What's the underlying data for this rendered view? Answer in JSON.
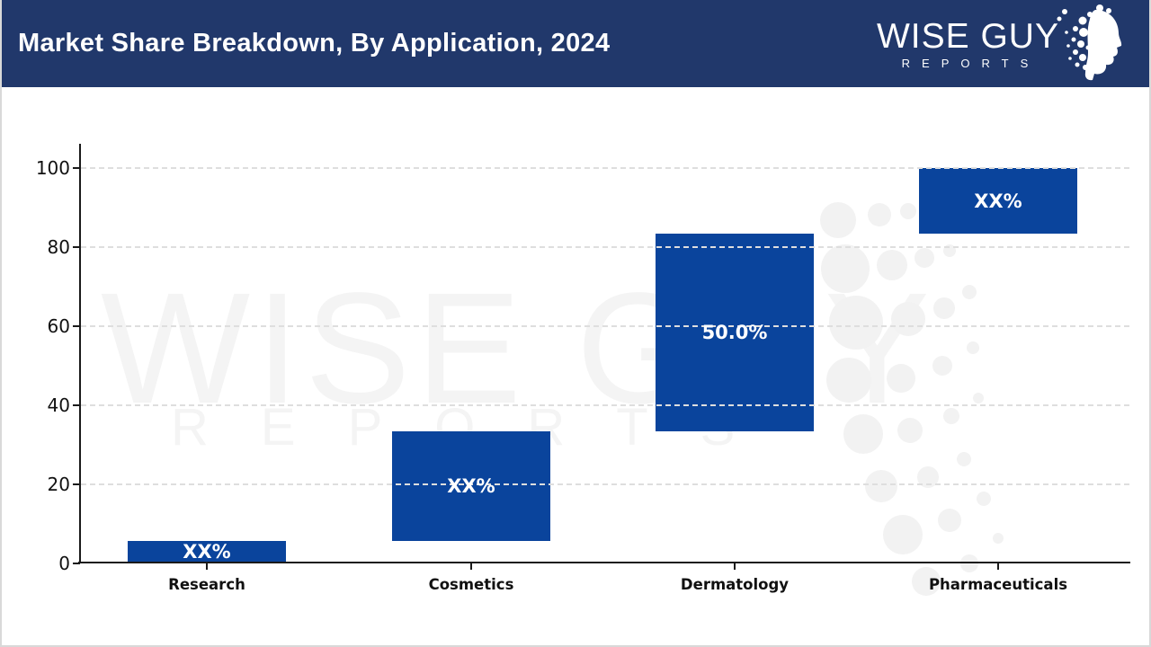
{
  "header": {
    "title": "Market Share Breakdown, By Application, 2024",
    "logo": {
      "line1": "WISE GUY",
      "line2": "REPORTS"
    }
  },
  "watermark": {
    "line1": "WISE GUY",
    "line2": "REPORTS"
  },
  "colors": {
    "header_bg": "#21386b",
    "bar": "#0a449c",
    "grid": "#dedede",
    "axis": "#1a1a1a",
    "watermark": "#f4f4f4",
    "bar_label_text": "#ffffff",
    "title_text": "#ffffff"
  },
  "chart_data": {
    "type": "bar",
    "subtype": "waterfall-floating-bars",
    "title": "Market Share Breakdown, By Application, 2024",
    "categories": [
      "Research",
      "Cosmetics",
      "Dermatology",
      "Pharmaceuticals"
    ],
    "segments": [
      {
        "category": "Research",
        "start": 0.3,
        "end": 5.7,
        "label": "XX%"
      },
      {
        "category": "Cosmetics",
        "start": 5.7,
        "end": 33.3,
        "label": "XX%"
      },
      {
        "category": "Dermatology",
        "start": 33.3,
        "end": 83.3,
        "label": "50.0%"
      },
      {
        "category": "Pharmaceuticals",
        "start": 83.3,
        "end": 100.0,
        "label": "XX%"
      }
    ],
    "y_ticks": [
      0,
      20,
      40,
      60,
      80,
      100
    ],
    "ylim": [
      0,
      105
    ],
    "xlabel": "",
    "ylabel": "",
    "grid": "horizontal-dashed",
    "legend": "none"
  }
}
